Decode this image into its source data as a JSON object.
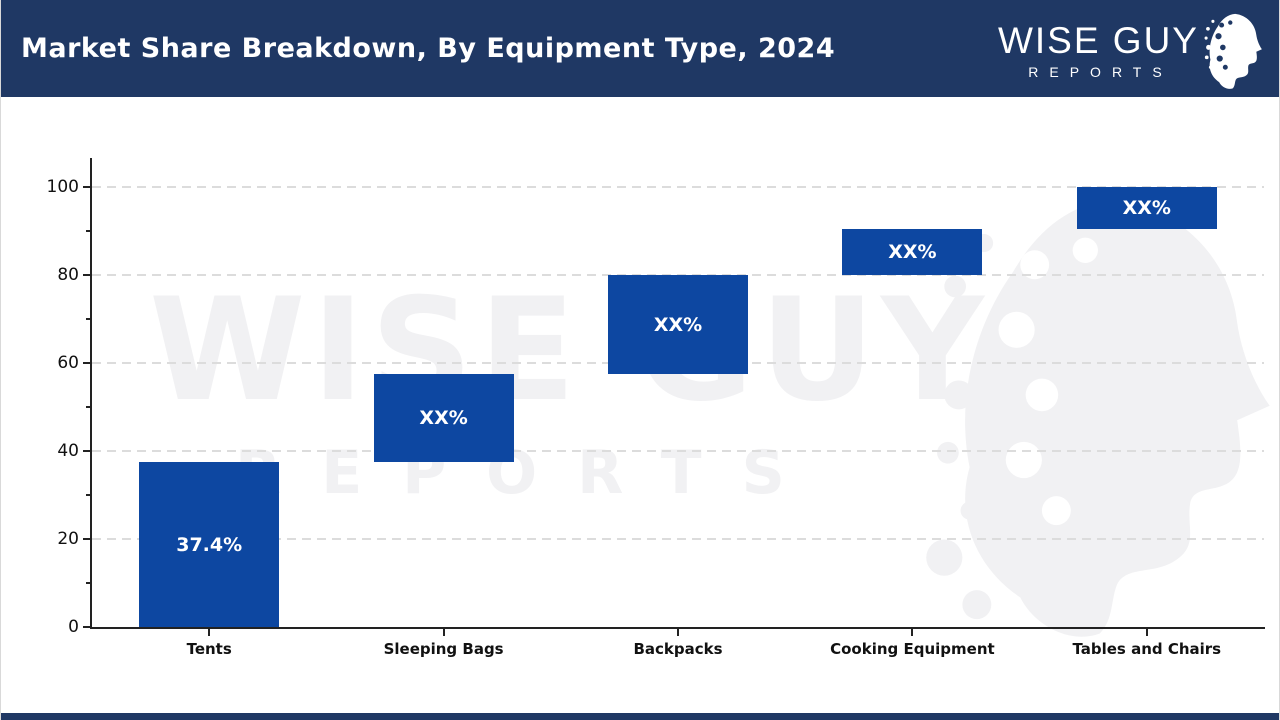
{
  "header": {
    "title": "Market Share Breakdown, By Equipment Type, 2024",
    "logo": {
      "wordmark": "WISE GUY",
      "subtext": "REPORTS"
    }
  },
  "watermark": {
    "wordmark": "WISE GUY",
    "subtext": "REPORTS"
  },
  "colors": {
    "header_bg": "#1F3864",
    "footer_bg": "#1F3864",
    "bar": "#0D47A1",
    "bar_label": "#FFFFFF",
    "grid": "#DCDCDC",
    "axis": "#222222",
    "watermark": "#F1F1F3"
  },
  "chart_data": {
    "type": "bar",
    "subtype": "waterfall",
    "title": "Market Share Breakdown, By Equipment Type, 2024",
    "unit": "%",
    "categories": [
      "Tents",
      "Sleeping Bags",
      "Backpacks",
      "Cooking Equipment",
      "Tables and Chairs"
    ],
    "segments": [
      {
        "category": "Tents",
        "start": 0,
        "end": 37.4,
        "value": 37.4,
        "label": "37.4%"
      },
      {
        "category": "Sleeping Bags",
        "start": 37.4,
        "end": 57.5,
        "value": 20.1,
        "label": "XX%"
      },
      {
        "category": "Backpacks",
        "start": 57.5,
        "end": 80,
        "value": 22.5,
        "label": "XX%"
      },
      {
        "category": "Cooking Equipment",
        "start": 80,
        "end": 90.5,
        "value": 10.5,
        "label": "XX%"
      },
      {
        "category": "Tables and Chairs",
        "start": 90.5,
        "end": 100,
        "value": 9.5,
        "label": "XX%"
      }
    ],
    "y_ticks": [
      0,
      20,
      40,
      60,
      80,
      100
    ],
    "ylim": [
      0,
      100
    ],
    "xlabel": "",
    "ylabel": "",
    "grid": "horizontal-dashed",
    "legend": "none"
  }
}
